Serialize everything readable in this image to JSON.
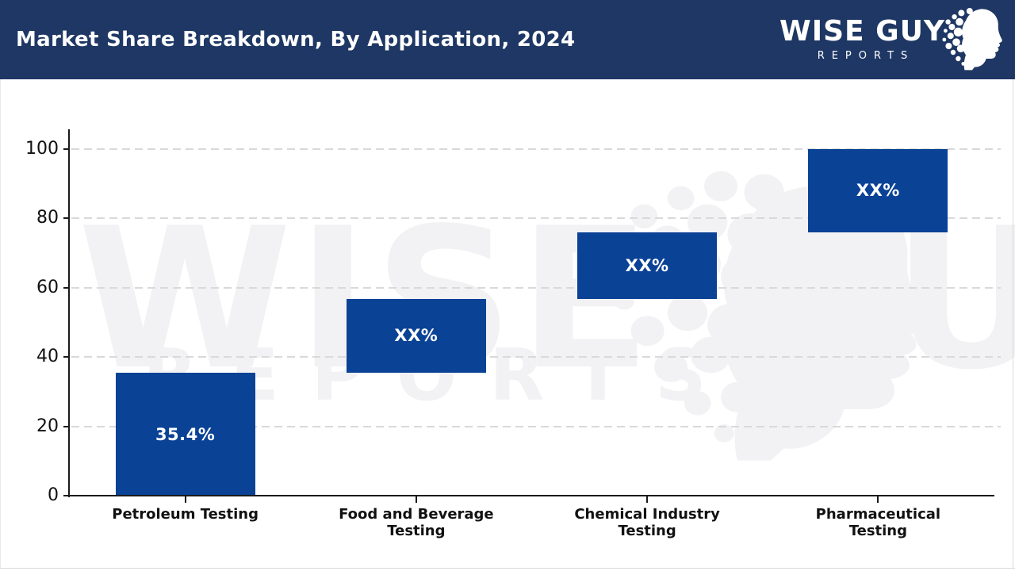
{
  "header": {
    "title": "Market Share Breakdown, By Application, 2024",
    "logo": {
      "wordmark": "WISE GUY",
      "subtext": "REPORTS"
    }
  },
  "watermark": {
    "wordmark": "WISE GUY",
    "subtext": "REPORTS"
  },
  "colors": {
    "header_bg": "#1E3764",
    "bar_blue": "#0A4296",
    "bar_label": "#FFFFFF",
    "gridline": "#D9D9D9",
    "axis": "#1A1A1A",
    "tick_label": "#111111",
    "watermark": "#F2F2F4",
    "page_border": "#D9D9D9"
  },
  "chart_data": {
    "type": "bar",
    "subtype": "waterfall",
    "title": "Market Share Breakdown, By Application, 2024",
    "categories": [
      "Petroleum Testing",
      "Food and Beverage\nTesting",
      "Chemical Industry\nTesting",
      "Pharmaceutical\nTesting"
    ],
    "bars": [
      {
        "category": "Petroleum Testing",
        "label": "35.4%",
        "start": 0,
        "end": 35.4
      },
      {
        "category": "Food and Beverage Testing",
        "label": "XX%",
        "start": 35.4,
        "end": 56.8
      },
      {
        "category": "Chemical Industry Testing",
        "label": "XX%",
        "start": 56.8,
        "end": 75.8
      },
      {
        "category": "Pharmaceutical Testing",
        "label": "XX%",
        "start": 75.8,
        "end": 100
      }
    ],
    "yticks": [
      0,
      20,
      40,
      60,
      80,
      100
    ],
    "ylim": [
      0,
      105.5
    ],
    "xlabel": "",
    "ylabel": "",
    "grid": "horizontal-dashed",
    "legend": "none"
  }
}
